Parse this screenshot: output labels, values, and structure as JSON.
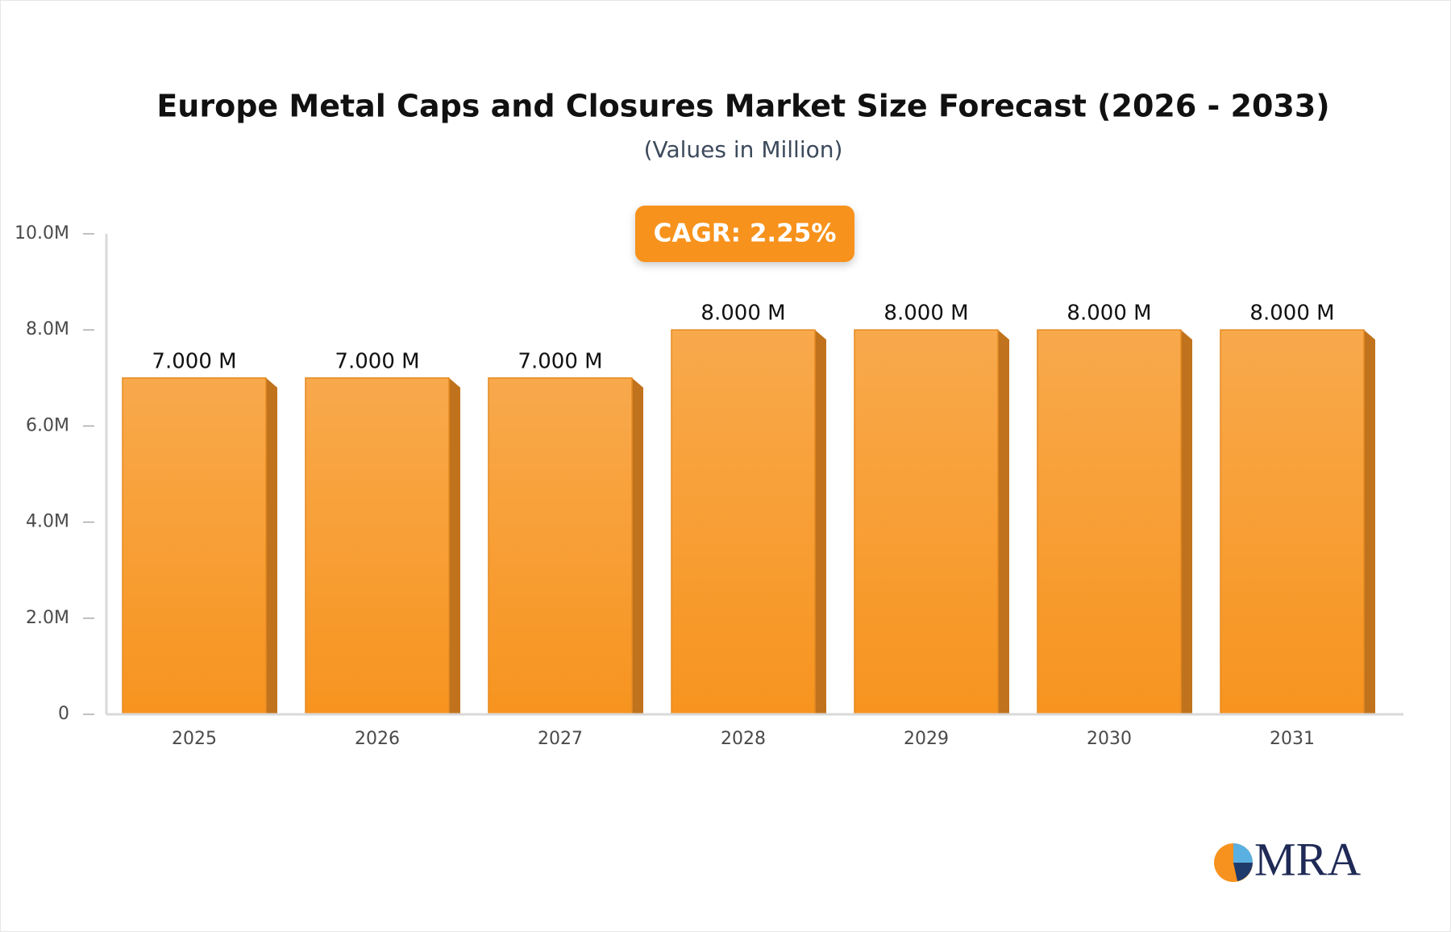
{
  "chart_data": {
    "type": "bar",
    "title": "Europe Metal Caps and Closures Market Size Forecast (2026 - 2033)",
    "subtitle": "(Values in Million)",
    "annotation": "CAGR: 2.25%",
    "logo": "MRA",
    "categories": [
      "2025",
      "2026",
      "2027",
      "2028",
      "2029",
      "2030",
      "2031"
    ],
    "values": [
      7,
      7,
      7,
      8,
      8,
      8,
      8
    ],
    "value_labels": [
      "7.000 M",
      "7.000 M",
      "7.000 M",
      "8.000 M",
      "8.000 M",
      "8.000 M",
      "8.000 M"
    ],
    "color": "#f7941f",
    "ylim": [
      0,
      10
    ],
    "yticks": [
      0,
      {
        "value": 2,
        "label": "2.0M"
      },
      {
        "value": 4,
        "label": "4.0M"
      },
      {
        "value": 6,
        "label": "6.0M"
      },
      {
        "value": 8,
        "label": "8.0M"
      },
      {
        "value": 10,
        "label": "10.0M"
      }
    ],
    "grid": false
  }
}
